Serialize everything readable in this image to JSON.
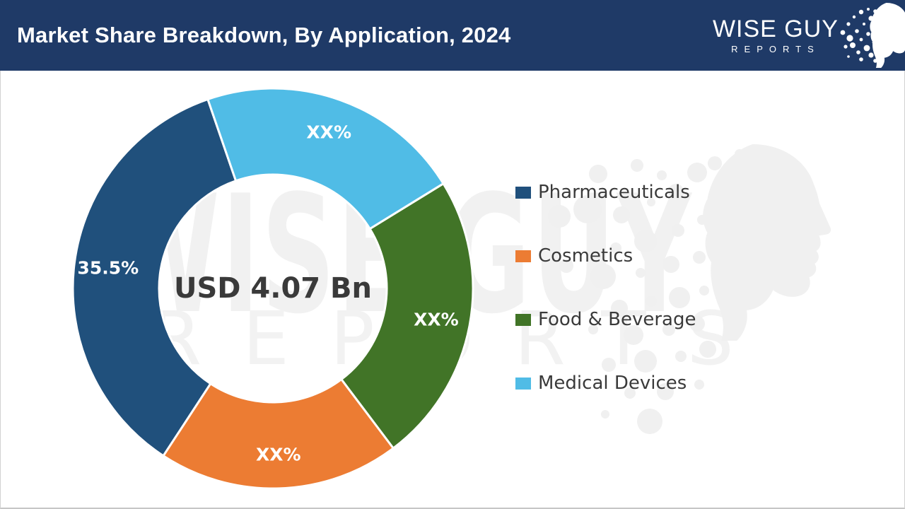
{
  "header": {
    "title": "Market Share Breakdown, By Application, 2024",
    "logo": {
      "wordmark": "WISE GUY",
      "reports": "REPORTS"
    },
    "bg_color": "#1F3A67"
  },
  "watermark": {
    "wordmark": "WISE GUY",
    "reports": "REPORTS"
  },
  "chart_data": {
    "type": "pie",
    "donut": true,
    "title": "Market Share Breakdown, By Application, 2024",
    "center_label": "USD 4.07 Bn",
    "start_angle_deg": -19,
    "direction": "counterclockwise",
    "inner_radius_ratio": 0.57,
    "legend_position": "right",
    "segments": [
      {
        "name": "Pharmaceuticals",
        "value": 35.5,
        "label": "35.5%",
        "color": "#20507C"
      },
      {
        "name": "Cosmetics",
        "value": 19.5,
        "label": "XX%",
        "color": "#EC7C33"
      },
      {
        "name": "Food & Beverage",
        "value": 23.5,
        "label": "XX%",
        "color": "#417427"
      },
      {
        "name": "Medical Devices",
        "value": 21.5,
        "label": "XX%",
        "color": "#50BCE6"
      }
    ]
  },
  "colors": {
    "header_bg": "#1F3A67",
    "content_border": "#C9C9C9",
    "text_dark": "#3A3A3A",
    "slice_label": "#FFFFFF",
    "watermark_gray": "#F0F0F0"
  }
}
